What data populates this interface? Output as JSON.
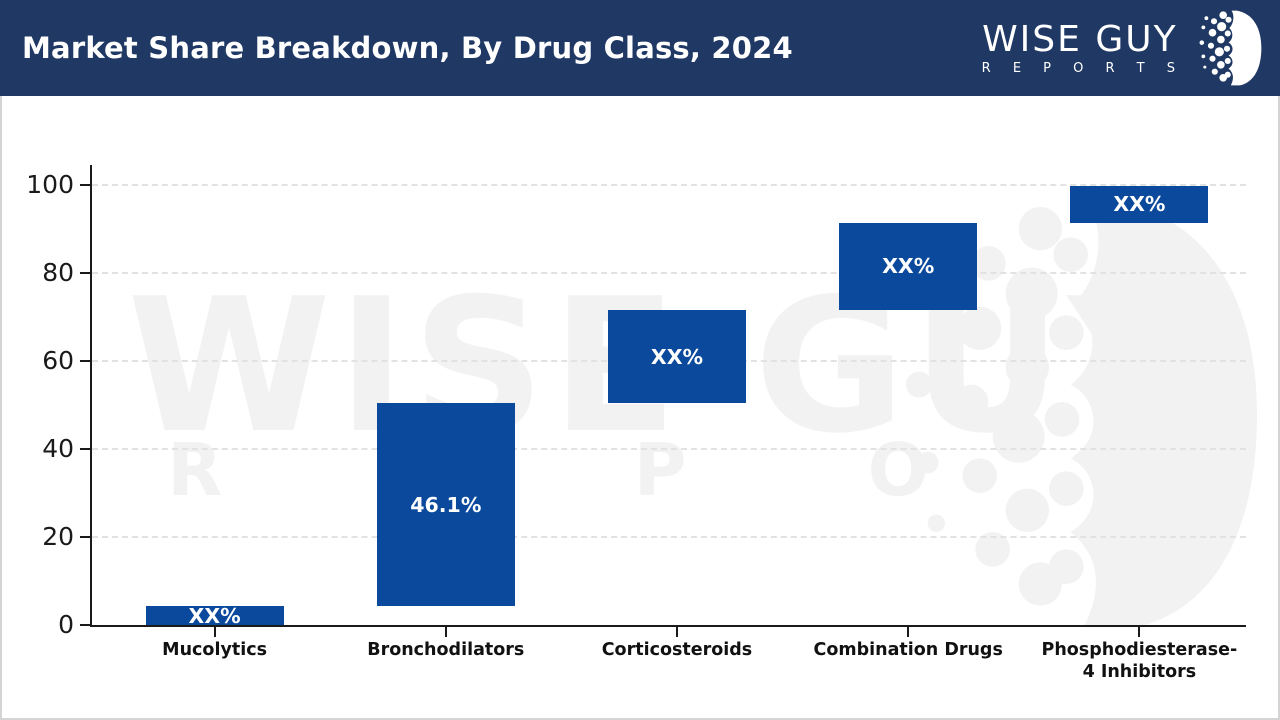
{
  "header": {
    "title": "Market Share Breakdown, By Drug Class, 2024",
    "logo": {
      "line1": "WISE GUY",
      "line2": "R E P O R T S"
    }
  },
  "watermark": {
    "line1": "WISE GUY",
    "line2": "R E P O R T S"
  },
  "colors": {
    "header_bg": "#1f3864",
    "bar": "#0a499c",
    "axis": "#1a1a1a",
    "gridline": "#e2e2e2",
    "watermark": "#f2f2f2",
    "title_text": "#ffffff",
    "bar_label": "#ffffff",
    "page_border": "#d4d4d4"
  },
  "chart_data": {
    "type": "bar",
    "subtype": "waterfall",
    "title": "Market Share Breakdown, By Drug Class, 2024",
    "categories": [
      "Mucolytics",
      "Bronchodilators",
      "Corticosteroids",
      "Combination Drugs",
      "Phosphodiesterase-4 Inhibitors"
    ],
    "segments": [
      {
        "category": "Mucolytics",
        "start": 0,
        "end": 4.3,
        "label": "XX%"
      },
      {
        "category": "Bronchodilators",
        "start": 4.3,
        "end": 50.4,
        "label": "46.1%"
      },
      {
        "category": "Corticosteroids",
        "start": 50.4,
        "end": 71.6,
        "label": "XX%"
      },
      {
        "category": "Combination Drugs",
        "start": 71.6,
        "end": 91.4,
        "label": "XX%"
      },
      {
        "category": "Phosphodiesterase-\n4 Inhibitors",
        "start": 91.4,
        "end": 99.8,
        "label": "XX%"
      }
    ],
    "yticks": [
      0,
      20,
      40,
      60,
      80,
      100
    ],
    "ylim": [
      0,
      105
    ],
    "grid": "horizontal-dashed",
    "legend": "none",
    "xlabel": "",
    "ylabel": ""
  }
}
